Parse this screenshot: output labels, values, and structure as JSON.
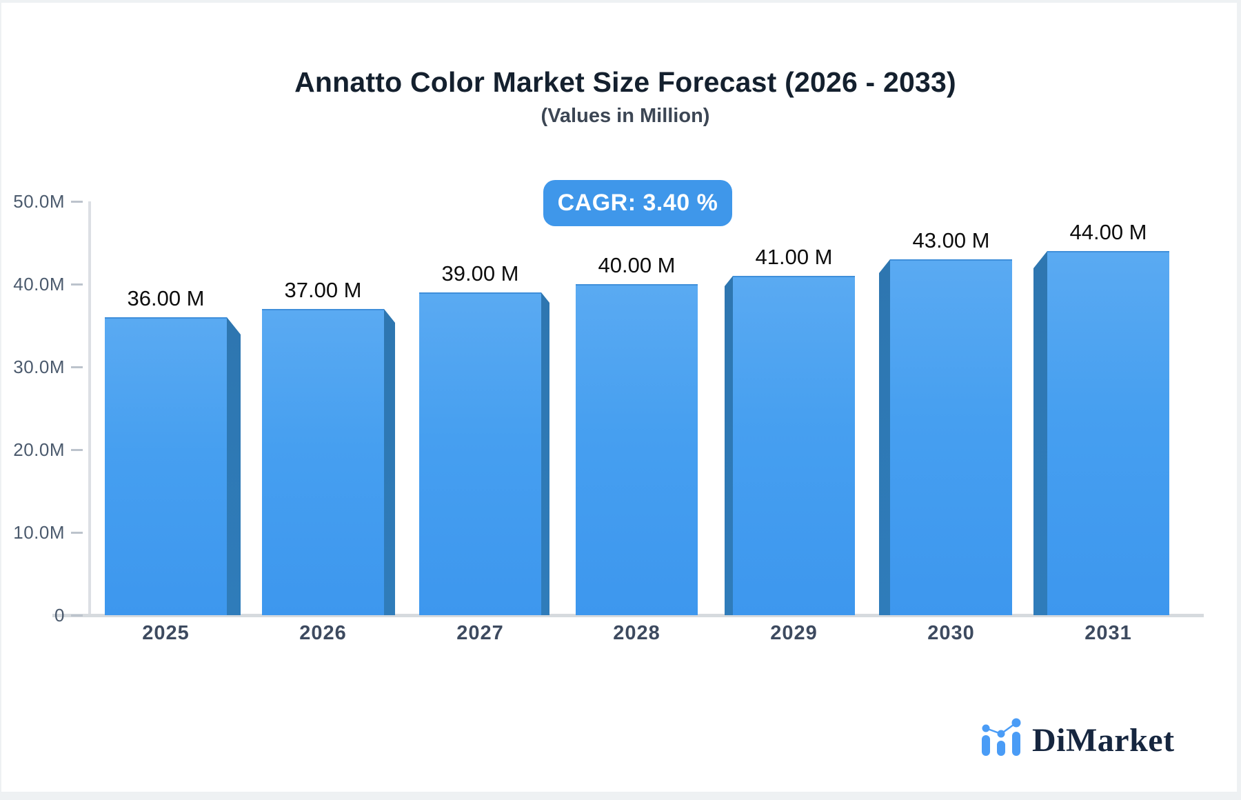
{
  "chart": {
    "title": "Annatto Color Market Size Forecast (2026 - 2033)",
    "subtitle": "(Values in Million)",
    "cagr_label": "CAGR: 3.40 %"
  },
  "chart_data": {
    "type": "bar",
    "categories": [
      "2025",
      "2026",
      "2027",
      "2028",
      "2029",
      "2030",
      "2031"
    ],
    "values": [
      36,
      37,
      39,
      40,
      41,
      43,
      44
    ],
    "value_labels": [
      "36.00 M",
      "37.00 M",
      "39.00 M",
      "40.00 M",
      "41.00 M",
      "43.00 M",
      "44.00 M"
    ],
    "unit": "Million",
    "title": "Annatto Color Market Size Forecast (2026 - 2033)",
    "subtitle": "(Values in Million)",
    "annotation": "CAGR: 3.40 %",
    "ylabel": "",
    "xlabel": "",
    "ytick_labels": [
      "50.0M",
      "40.0M",
      "30.0M",
      "20.0M",
      "10.0M",
      "0"
    ],
    "ytick_values": [
      50,
      40,
      30,
      20,
      10,
      0
    ],
    "ylim": [
      0,
      50
    ],
    "grid": false,
    "legend": false,
    "style": "3d-perspective-bars",
    "colors": {
      "bar_face_top": "#5aaaf2",
      "bar_face_bottom": "#3d97ee",
      "bar_side": "#2e77b3",
      "accent_badge": "#3f97ea",
      "axis": "#dcdfe4",
      "text_dark": "#14202e"
    }
  },
  "brand": {
    "name": "DiMarket",
    "icon": "bar-chart-with-trend-dots-icon"
  }
}
